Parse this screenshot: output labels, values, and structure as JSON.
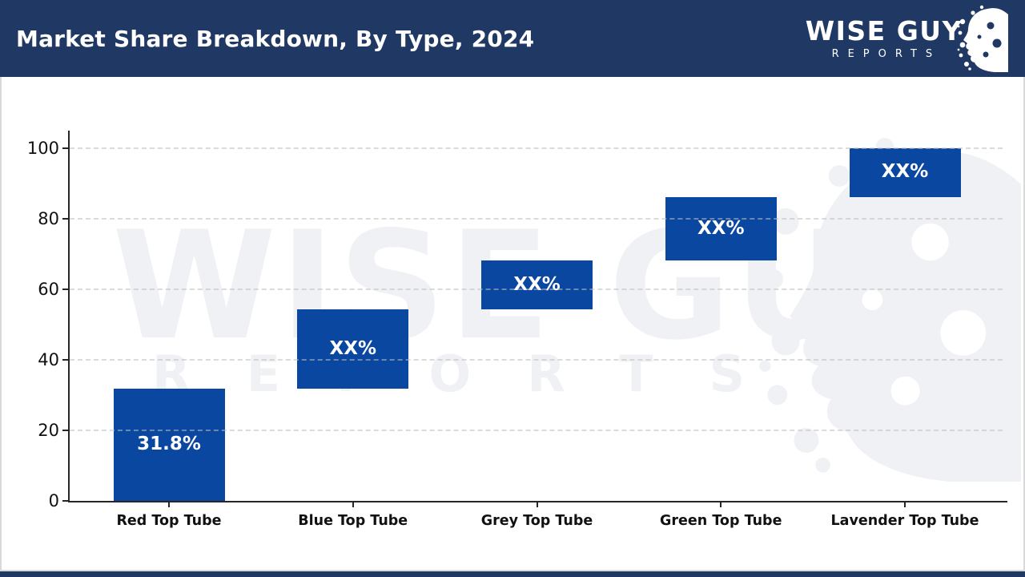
{
  "header": {
    "title": "Market Share Breakdown, By Type, 2024",
    "logo": {
      "line1": "WISE GUY",
      "line2": "REPORTS"
    },
    "bg_color": "#203864"
  },
  "watermark": {
    "line1": "WISE GUY",
    "line2": "REPORTS"
  },
  "chart_data": {
    "type": "bar",
    "subtype": "waterfall",
    "title": "Market Share Breakdown, By Type, 2024",
    "categories": [
      "Red Top Tube",
      "Blue Top Tube",
      "Grey Top Tube",
      "Green Top Tube",
      "Lavender Top Tube"
    ],
    "segments": [
      {
        "category": "Red Top Tube",
        "start": 0,
        "end": 31.8,
        "value": 31.8,
        "label": "31.8%"
      },
      {
        "category": "Blue Top Tube",
        "start": 31.8,
        "end": 54.3,
        "value": 22.5,
        "label": "XX%"
      },
      {
        "category": "Grey Top Tube",
        "start": 54.3,
        "end": 68.1,
        "value": 13.8,
        "label": "XX%"
      },
      {
        "category": "Green Top Tube",
        "start": 68.1,
        "end": 86.2,
        "value": 18.1,
        "label": "XX%"
      },
      {
        "category": "Lavender Top Tube",
        "start": 86.2,
        "end": 100,
        "value": 13.8,
        "label": "XX%"
      }
    ],
    "xlabel": "",
    "ylabel": "",
    "ylim": [
      0,
      105
    ],
    "yticks": [
      0,
      20,
      40,
      60,
      80,
      100
    ],
    "grid": true,
    "grid_style": "dashed",
    "legend": "none",
    "bar_color": "#0a47a0",
    "bar_label_color": "#ffffff",
    "axis_color": "#262626"
  }
}
